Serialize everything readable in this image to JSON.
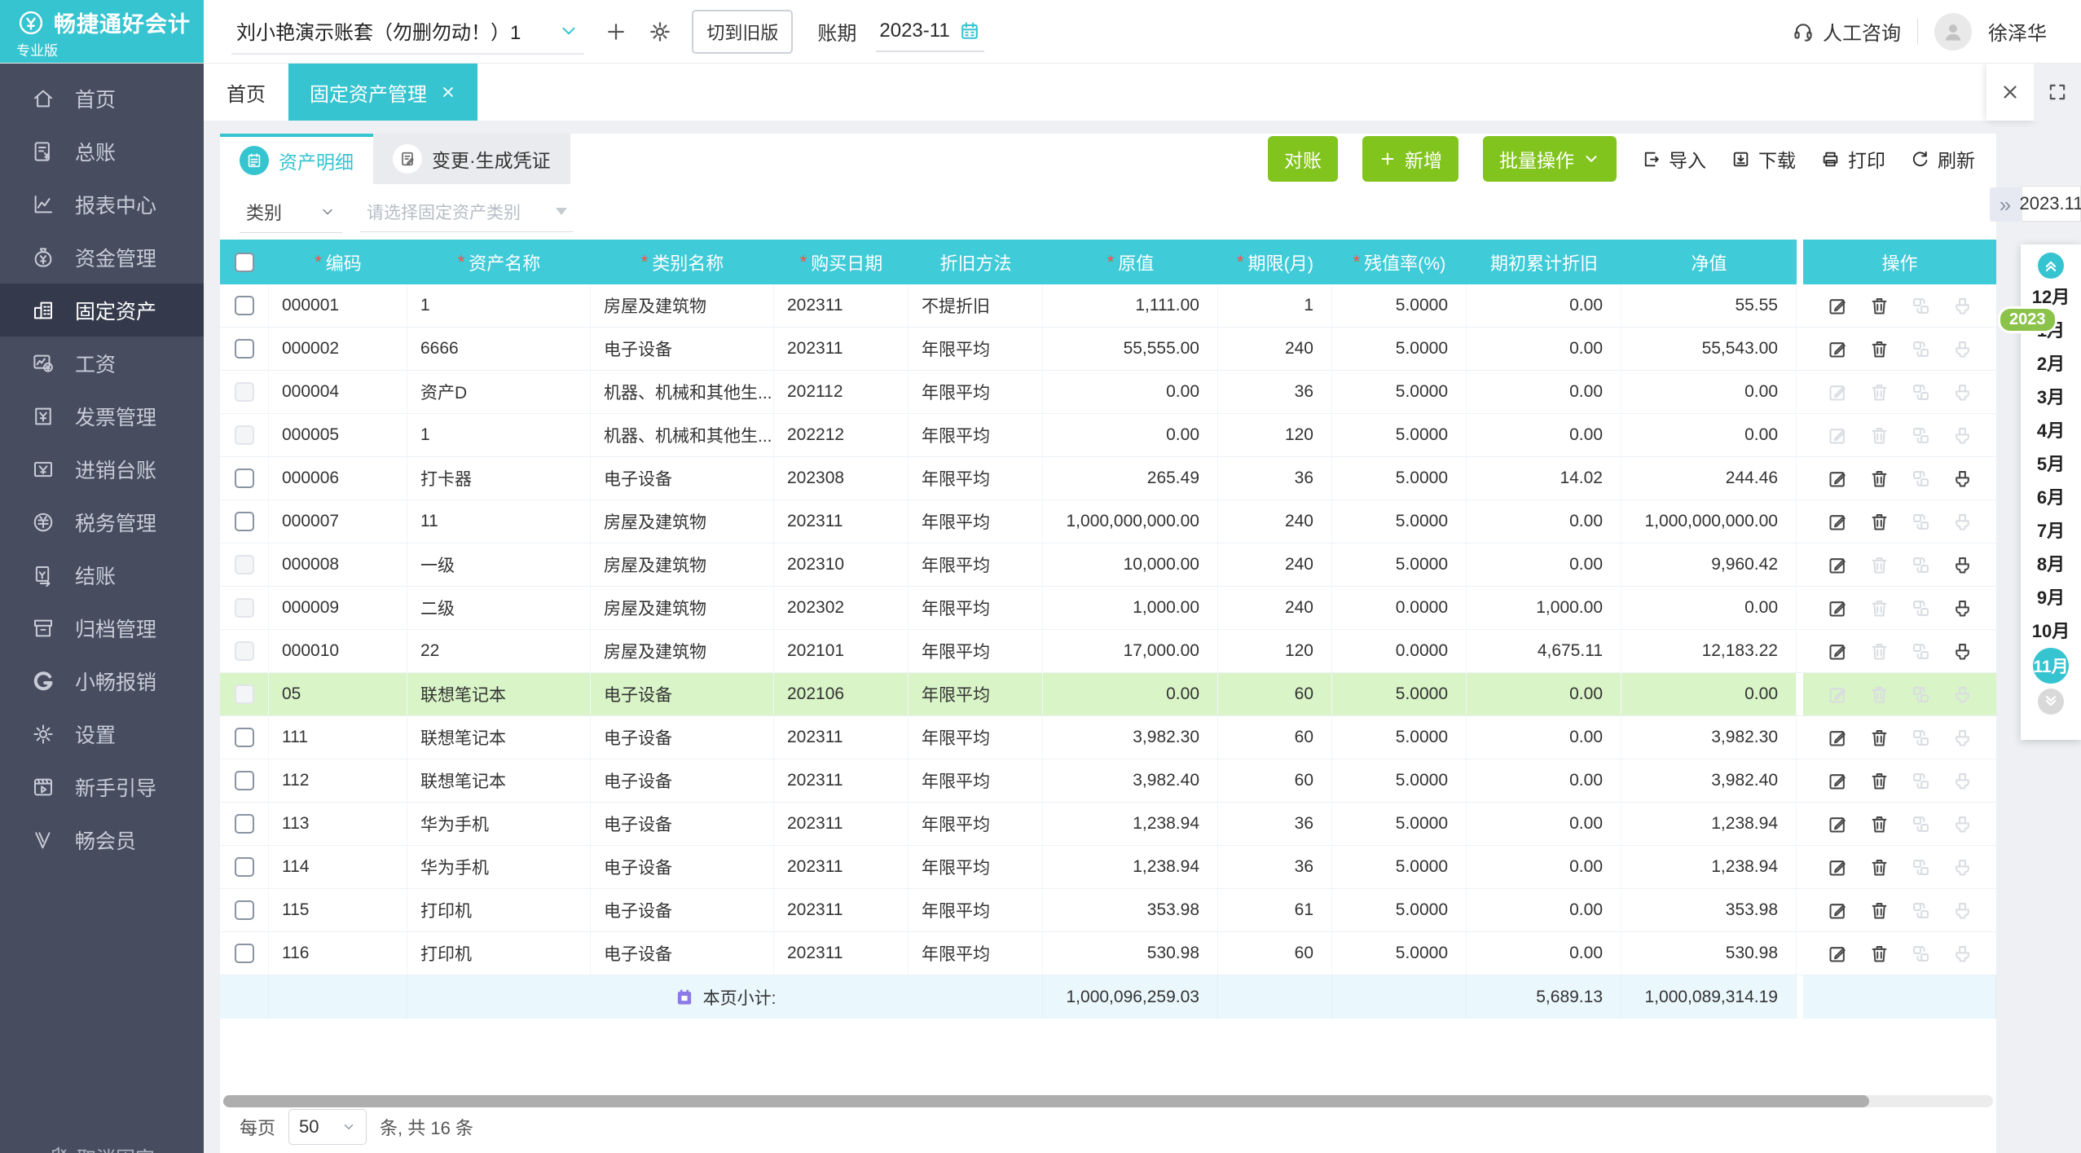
{
  "header": {
    "product": "畅捷通好会计",
    "edition": "专业版",
    "account": "刘小艳演示账套（勿删勿动！）1",
    "old_version": "切到旧版",
    "period_label": "账期",
    "period": "2023-11",
    "support": "人工咨询",
    "user": "徐泽华"
  },
  "tabs": [
    {
      "label": "首页"
    },
    {
      "label": "固定资产管理",
      "active": true,
      "closable": true
    }
  ],
  "subtabs": [
    {
      "label": "资产明细",
      "active": true
    },
    {
      "label": "变更·生成凭证"
    }
  ],
  "toolbar": {
    "buttons": [
      {
        "label": "对账"
      },
      {
        "label": "新增",
        "icon": "plus"
      },
      {
        "label": "批量操作",
        "icon": "chevdown"
      }
    ],
    "links": [
      {
        "label": "导入",
        "icon": "import"
      },
      {
        "label": "下载",
        "icon": "download"
      },
      {
        "label": "打印",
        "icon": "print"
      },
      {
        "label": "刷新",
        "icon": "refresh"
      }
    ]
  },
  "filter": {
    "label": "类别",
    "placeholder": "请选择固定资产类别"
  },
  "table": {
    "columns": [
      {
        "key": "code",
        "label": "编码",
        "required": true,
        "cls": "c-code"
      },
      {
        "key": "name",
        "label": "资产名称",
        "required": true,
        "cls": "c-name"
      },
      {
        "key": "category",
        "label": "类别名称",
        "required": true,
        "cls": "c-cat"
      },
      {
        "key": "date",
        "label": "购买日期",
        "required": true,
        "cls": "c-date"
      },
      {
        "key": "method",
        "label": "折旧方法",
        "required": false,
        "cls": "c-method"
      },
      {
        "key": "original",
        "label": "原值",
        "required": true,
        "cls": "c-orig",
        "num": true
      },
      {
        "key": "months",
        "label": "期限(月)",
        "required": true,
        "cls": "c-months",
        "num": true
      },
      {
        "key": "rate",
        "label": "残值率(%)",
        "required": true,
        "cls": "c-rate",
        "num": true
      },
      {
        "key": "init_dep",
        "label": "期初累计折旧",
        "required": false,
        "cls": "c-init",
        "num": true
      },
      {
        "key": "net",
        "label": "净值",
        "required": false,
        "cls": "c-net",
        "num": true
      },
      {
        "key": "ops",
        "label": "操作",
        "required": false,
        "cls": "c-ops"
      }
    ],
    "rows": [
      {
        "code": "000001",
        "name": "1",
        "category": "房屋及建筑物",
        "date": "202311",
        "method": "不提折旧",
        "original": "1,111.00",
        "months": "1",
        "rate": "5.0000",
        "init_dep": "0.00",
        "net": "55.55",
        "checkbox": "enabled",
        "highlight": false,
        "ops": [
          1,
          1,
          0,
          0
        ]
      },
      {
        "code": "000002",
        "name": "6666",
        "category": "电子设备",
        "date": "202311",
        "method": "年限平均",
        "original": "55,555.00",
        "months": "240",
        "rate": "5.0000",
        "init_dep": "0.00",
        "net": "55,543.00",
        "checkbox": "enabled",
        "highlight": false,
        "ops": [
          1,
          1,
          0,
          0
        ]
      },
      {
        "code": "000004",
        "name": "资产D",
        "category": "机器、机械和其他生...",
        "date": "202112",
        "method": "年限平均",
        "original": "0.00",
        "months": "36",
        "rate": "5.0000",
        "init_dep": "0.00",
        "net": "0.00",
        "checkbox": "disabled",
        "highlight": false,
        "ops": [
          0,
          0,
          0,
          0
        ]
      },
      {
        "code": "000005",
        "name": "1",
        "category": "机器、机械和其他生...",
        "date": "202212",
        "method": "年限平均",
        "original": "0.00",
        "months": "120",
        "rate": "5.0000",
        "init_dep": "0.00",
        "net": "0.00",
        "checkbox": "disabled",
        "highlight": false,
        "ops": [
          0,
          0,
          0,
          0
        ]
      },
      {
        "code": "000006",
        "name": "打卡器",
        "category": "电子设备",
        "date": "202308",
        "method": "年限平均",
        "original": "265.49",
        "months": "36",
        "rate": "5.0000",
        "init_dep": "14.02",
        "net": "244.46",
        "checkbox": "enabled",
        "highlight": false,
        "ops": [
          1,
          1,
          0,
          1
        ]
      },
      {
        "code": "000007",
        "name": "11",
        "category": "房屋及建筑物",
        "date": "202311",
        "method": "年限平均",
        "original": "1,000,000,000.00",
        "months": "240",
        "rate": "5.0000",
        "init_dep": "0.00",
        "net": "1,000,000,000.00",
        "checkbox": "enabled",
        "highlight": false,
        "ops": [
          1,
          1,
          0,
          0
        ]
      },
      {
        "code": "000008",
        "name": "一级",
        "category": "房屋及建筑物",
        "date": "202310",
        "method": "年限平均",
        "original": "10,000.00",
        "months": "240",
        "rate": "5.0000",
        "init_dep": "0.00",
        "net": "9,960.42",
        "checkbox": "disabled",
        "highlight": false,
        "ops": [
          1,
          0,
          0,
          1
        ]
      },
      {
        "code": "000009",
        "name": "二级",
        "category": "房屋及建筑物",
        "date": "202302",
        "method": "年限平均",
        "original": "1,000.00",
        "months": "240",
        "rate": "0.0000",
        "init_dep": "1,000.00",
        "net": "0.00",
        "checkbox": "disabled",
        "highlight": false,
        "ops": [
          1,
          0,
          0,
          1
        ]
      },
      {
        "code": "000010",
        "name": "22",
        "category": "房屋及建筑物",
        "date": "202101",
        "method": "年限平均",
        "original": "17,000.00",
        "months": "120",
        "rate": "0.0000",
        "init_dep": "4,675.11",
        "net": "12,183.22",
        "checkbox": "disabled",
        "highlight": false,
        "ops": [
          1,
          0,
          0,
          1
        ]
      },
      {
        "code": "05",
        "name": "联想笔记本",
        "category": "电子设备",
        "date": "202106",
        "method": "年限平均",
        "original": "0.00",
        "months": "60",
        "rate": "5.0000",
        "init_dep": "0.00",
        "net": "0.00",
        "checkbox": "disabled",
        "highlight": true,
        "ops": [
          0,
          0,
          0,
          0
        ]
      },
      {
        "code": "111",
        "name": "联想笔记本",
        "category": "电子设备",
        "date": "202311",
        "method": "年限平均",
        "original": "3,982.30",
        "months": "60",
        "rate": "5.0000",
        "init_dep": "0.00",
        "net": "3,982.30",
        "checkbox": "enabled",
        "highlight": false,
        "ops": [
          1,
          1,
          0,
          0
        ]
      },
      {
        "code": "112",
        "name": "联想笔记本",
        "category": "电子设备",
        "date": "202311",
        "method": "年限平均",
        "original": "3,982.40",
        "months": "60",
        "rate": "5.0000",
        "init_dep": "0.00",
        "net": "3,982.40",
        "checkbox": "enabled",
        "highlight": false,
        "ops": [
          1,
          1,
          0,
          0
        ]
      },
      {
        "code": "113",
        "name": "华为手机",
        "category": "电子设备",
        "date": "202311",
        "method": "年限平均",
        "original": "1,238.94",
        "months": "36",
        "rate": "5.0000",
        "init_dep": "0.00",
        "net": "1,238.94",
        "checkbox": "enabled",
        "highlight": false,
        "ops": [
          1,
          1,
          0,
          0
        ]
      },
      {
        "code": "114",
        "name": "华为手机",
        "category": "电子设备",
        "date": "202311",
        "method": "年限平均",
        "original": "1,238.94",
        "months": "36",
        "rate": "5.0000",
        "init_dep": "0.00",
        "net": "1,238.94",
        "checkbox": "enabled",
        "highlight": false,
        "ops": [
          1,
          1,
          0,
          0
        ]
      },
      {
        "code": "115",
        "name": "打印机",
        "category": "电子设备",
        "date": "202311",
        "method": "年限平均",
        "original": "353.98",
        "months": "61",
        "rate": "5.0000",
        "init_dep": "0.00",
        "net": "353.98",
        "checkbox": "enabled",
        "highlight": false,
        "ops": [
          1,
          1,
          0,
          0
        ]
      },
      {
        "code": "116",
        "name": "打印机",
        "category": "电子设备",
        "date": "202311",
        "method": "年限平均",
        "original": "530.98",
        "months": "60",
        "rate": "5.0000",
        "init_dep": "0.00",
        "net": "530.98",
        "checkbox": "enabled",
        "highlight": false,
        "ops": [
          1,
          1,
          0,
          0
        ]
      }
    ],
    "op_names": [
      "edit",
      "delete",
      "change",
      "clean"
    ],
    "summary": {
      "label": "本页小计:",
      "original": "1,000,096,259.03",
      "init_dep": "5,689.13",
      "net": "1,000,089,314.19"
    }
  },
  "pagination": {
    "per_page_label": "每页",
    "per_page": "50",
    "total_suffix": "条, 共 16 条"
  },
  "calendar": {
    "period": "2023.11",
    "collapse_glyph": "»",
    "prev_month": "12月",
    "year_badge": "2023",
    "months": [
      "1月",
      "2月",
      "3月",
      "4月",
      "5月",
      "6月",
      "7月",
      "8月",
      "9月",
      "10月",
      "11月"
    ],
    "selected_month": "11月"
  },
  "sidebar": {
    "items": [
      {
        "label": "首页",
        "icon": "home"
      },
      {
        "label": "总账",
        "icon": "ledger"
      },
      {
        "label": "报表中心",
        "icon": "report"
      },
      {
        "label": "资金管理",
        "icon": "funds"
      },
      {
        "label": "固定资产",
        "icon": "assets",
        "active": true
      },
      {
        "label": "工资",
        "icon": "payroll"
      },
      {
        "label": "发票管理",
        "icon": "invoice"
      },
      {
        "label": "进销台账",
        "icon": "daybook"
      },
      {
        "label": "税务管理",
        "icon": "tax"
      },
      {
        "label": "结账",
        "icon": "closing"
      },
      {
        "label": "归档管理",
        "icon": "archive"
      },
      {
        "label": "小畅报销",
        "icon": "reimburse"
      },
      {
        "label": "设置",
        "icon": "settings"
      },
      {
        "label": "新手引导",
        "icon": "guide"
      },
      {
        "label": "畅会员",
        "icon": "member"
      }
    ],
    "footer": "取消固定"
  },
  "colors": {
    "brand_cyan": "#35c4d0",
    "table_header_cyan": "#40cbd8",
    "button_green": "#82c41e",
    "sidebar_bg": "#474d5f",
    "highlight_row_green": "#d9f4c7",
    "summary_row_blue": "#eaf7fd",
    "required_red": "#ff4a3b",
    "year_badge_green": "#8bc34a"
  }
}
